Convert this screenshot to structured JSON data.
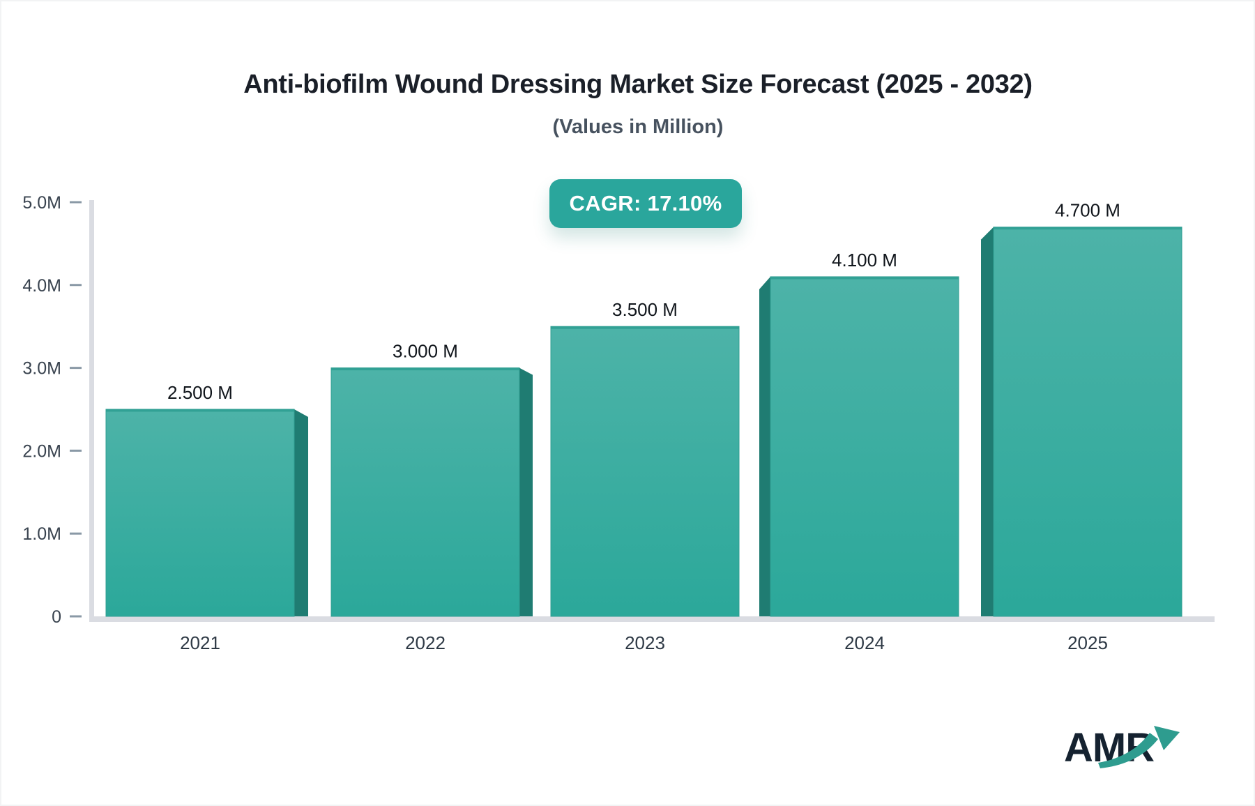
{
  "header": {
    "title": "Anti-biofilm Wound Dressing Market Size Forecast (2025 - 2032)",
    "subtitle": "(Values in Million)"
  },
  "badge": {
    "label": "CAGR: 17.10%"
  },
  "chart_data": {
    "type": "bar",
    "title": "Anti-biofilm Wound Dressing Market Size Forecast (2025 - 2032)",
    "subtitle": "(Values in Million)",
    "cagr_label": "CAGR: 17.10%",
    "categories": [
      "2021",
      "2022",
      "2023",
      "2024",
      "2025"
    ],
    "values": [
      2.5,
      3.0,
      3.5,
      4.1,
      4.7
    ],
    "value_labels": [
      "2.500 M",
      "3.000 M",
      "3.500 M",
      "4.100 M",
      "4.700 M"
    ],
    "unit": "Million",
    "ylim": [
      0,
      5
    ],
    "ytick_values": [
      0,
      1,
      2,
      3,
      4,
      5
    ],
    "ytick_labels": [
      "0",
      "1.0M",
      "2.0M",
      "3.0M",
      "4.0M",
      "5.0M"
    ],
    "xlabel": "",
    "ylabel": "",
    "grid": false,
    "legend": false,
    "bar_style": "3d-beveled-teal"
  },
  "logo": {
    "text": "AMR"
  },
  "colors": {
    "accent_teal": "#2AA69C",
    "bar_face_top": "#4DB3A8",
    "bar_face_bottom": "#2BA89A",
    "bar_side": "#1F7C72",
    "bar_top_edge": "#2F9E92",
    "axis_line": "#DADCE2",
    "tick_dash": "#8A99A6",
    "y_label": "#39434F",
    "x_label": "#2E3945",
    "value_label": "#10151B",
    "title": "#1A1F28",
    "subtitle": "#47525F",
    "badge_text": "#FFFFFF",
    "logo_navy": "#152230",
    "logo_arrow": "#2E9C8F"
  }
}
